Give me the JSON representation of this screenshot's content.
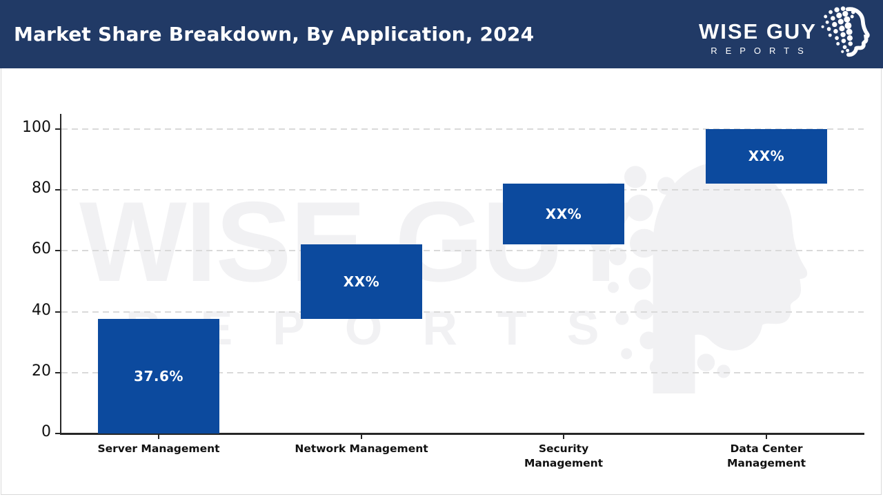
{
  "header": {
    "title": "Market Share Breakdown, By Application, 2024",
    "logo": {
      "name": "WISE GUY",
      "subtitle": "REPORTS"
    }
  },
  "watermark": {
    "line1": "WISE GUY",
    "line2": "REPORTS"
  },
  "colors": {
    "header_bg": "#213a66",
    "bar": "#0c4a9e",
    "bar_label": "#ffffff",
    "grid": "#d9d9d9",
    "axis": "#262626",
    "tick_text": "#111111",
    "watermark": "#f1f1f3"
  },
  "chart_data": {
    "type": "bar",
    "subtype": "waterfall",
    "title": "Market Share Breakdown, By Application, 2024",
    "categories": [
      "Server Management",
      "Network Management",
      "Security Management",
      "Data Center Management"
    ],
    "display_labels": [
      "Server Management",
      "Network Management",
      "Security\nManagement",
      "Data Center\nManagement"
    ],
    "values": [
      37.6,
      24.6,
      19.9,
      17.9
    ],
    "segments": [
      {
        "category": "Server Management",
        "start": 0,
        "end": 37.6,
        "label": "37.6%"
      },
      {
        "category": "Network Management",
        "start": 37.6,
        "end": 62.2,
        "label": "XX%"
      },
      {
        "category": "Security Management",
        "start": 62.2,
        "end": 82.1,
        "label": "XX%"
      },
      {
        "category": "Data Center Management",
        "start": 82.1,
        "end": 100,
        "label": "XX%"
      }
    ],
    "y_ticks": [
      0,
      20,
      40,
      60,
      80,
      100
    ],
    "ylim": [
      0,
      100
    ],
    "xlabel": "",
    "ylabel": "",
    "grid": "horizontal-dashed",
    "legend": "none",
    "bar_color": "#0c4a9e",
    "value_label_color": "#ffffff"
  }
}
